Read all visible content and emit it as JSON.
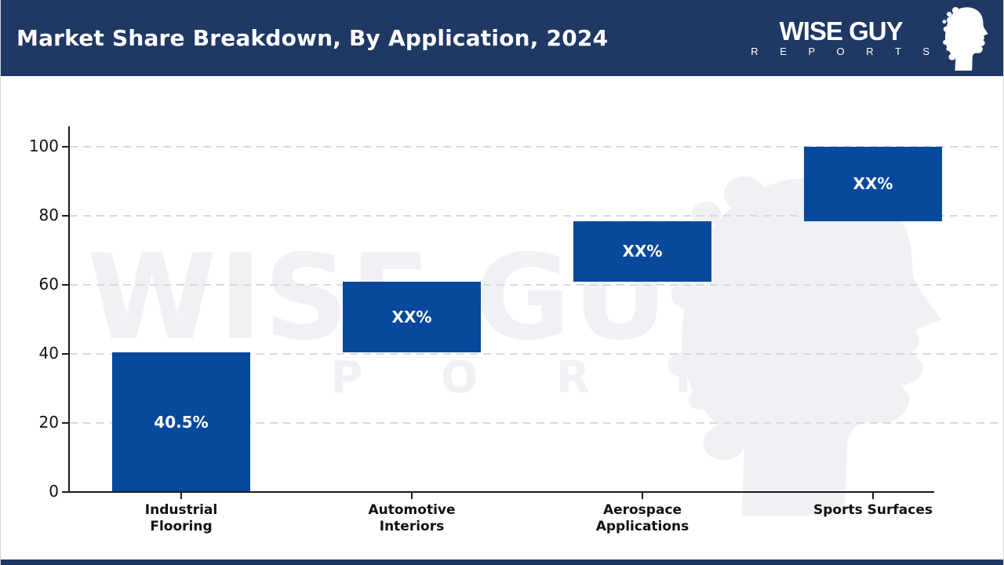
{
  "header": {
    "title": "Market Share Breakdown, By Application, 2024",
    "logo": {
      "name": "Wise Guy Reports",
      "line1": "WISE GUY",
      "line2": "R E P O R T S"
    }
  },
  "watermark": {
    "line1": "WISE GUY",
    "line2": "R E P O R T S"
  },
  "colors": {
    "header_bg": "#1F3864",
    "footer_bg": "#1F3864",
    "bar": "#07499C",
    "grid": "#D9D9D9",
    "axis": "#1A1A1A",
    "bar_label_text": "#FFFFFF",
    "watermark": "#F0F1F4"
  },
  "chart_data": {
    "type": "bar",
    "subtype": "floating-waterfall",
    "title": "Market Share Breakdown, By Application, 2024",
    "categories": [
      "Industrial\nFlooring",
      "Automotive\nInteriors",
      "Aerospace\nApplications",
      "Sports Surfaces"
    ],
    "segments": [
      {
        "category": "Industrial Flooring",
        "start": 0,
        "end": 40.5,
        "label": "40.5%"
      },
      {
        "category": "Automotive Interiors",
        "start": 40.5,
        "end": 61,
        "label": "XX%"
      },
      {
        "category": "Aerospace Applications",
        "start": 61,
        "end": 78.5,
        "label": "XX%"
      },
      {
        "category": "Sports Surfaces",
        "start": 78.5,
        "end": 100,
        "label": "XX%"
      }
    ],
    "xlabel": "",
    "ylabel": "",
    "ylim": [
      0,
      100
    ],
    "yticks": [
      0,
      20,
      40,
      60,
      80,
      100
    ],
    "grid": "horizontal-dashed",
    "legend": "none"
  }
}
